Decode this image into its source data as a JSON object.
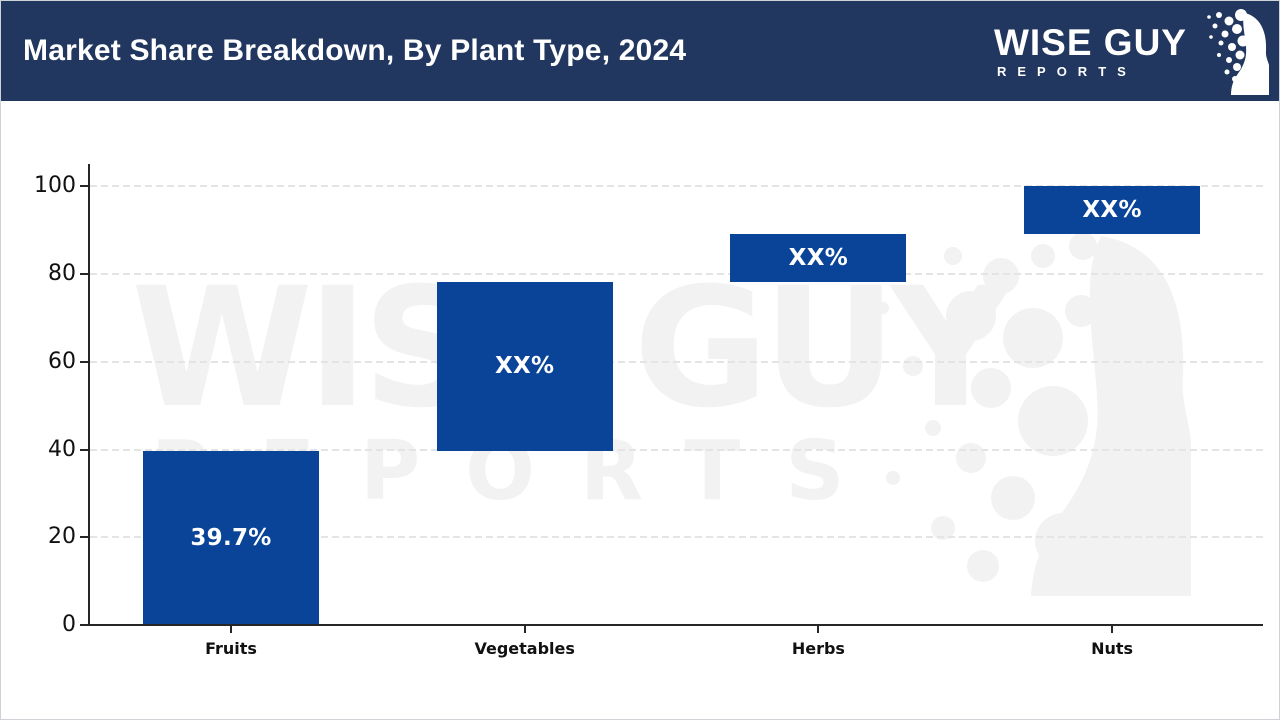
{
  "header": {
    "title": "Market Share Breakdown, By Plant Type, 2024",
    "logo": {
      "wordmark": "WISE GUY",
      "reports": "REPORTS"
    }
  },
  "watermark": {
    "line1": "WISE GUY",
    "line2": "REPORTS"
  },
  "colors": {
    "header_bg": "#21375f",
    "bar": "#0a4499",
    "bar_label": "#ffffff",
    "axis": "#262626",
    "grid": "#e4e4e4",
    "watermark": "#f2f2f2"
  },
  "chart_data": {
    "type": "bar",
    "subtype": "waterfall",
    "title": "Market Share Breakdown, By Plant Type, 2024",
    "categories": [
      "Fruits",
      "Vegetables",
      "Herbs",
      "Nuts"
    ],
    "bars": [
      {
        "category": "Fruits",
        "start": 0,
        "end": 39.7,
        "label": "39.7%"
      },
      {
        "category": "Vegetables",
        "start": 39.7,
        "end": 78.3,
        "label": "XX%"
      },
      {
        "category": "Herbs",
        "start": 78.3,
        "end": 89.2,
        "label": "XX%"
      },
      {
        "category": "Nuts",
        "start": 89.2,
        "end": 100,
        "label": "XX%"
      }
    ],
    "xlabel": "",
    "ylabel": "",
    "ylim": [
      0,
      105
    ],
    "yticks": [
      0,
      20,
      40,
      60,
      80,
      100
    ],
    "grid": "horizontal-dashed",
    "legend": "none",
    "bar_color": "#0a4499",
    "label_color": "#ffffff"
  }
}
